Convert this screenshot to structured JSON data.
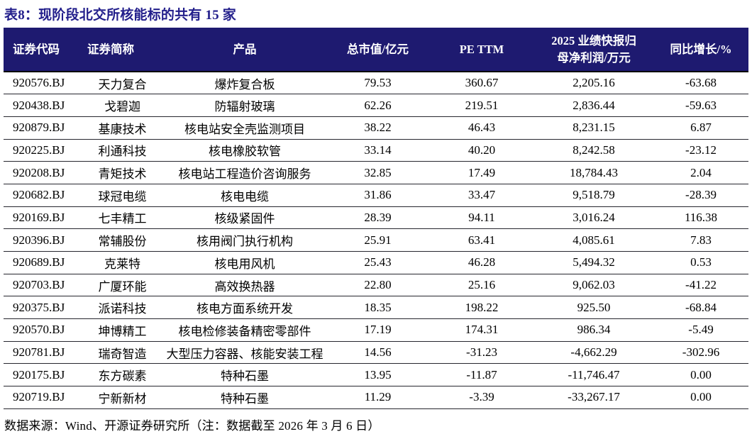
{
  "title": "表8：现阶段北交所核能标的共有 15 家",
  "table": {
    "columns": [
      {
        "label": "证券代码"
      },
      {
        "label": "证券简称"
      },
      {
        "label": "产品"
      },
      {
        "label": "总市值/亿元"
      },
      {
        "label": "PE TTM"
      },
      {
        "label": "2025 业绩快报归",
        "label2": "母净利润/万元"
      },
      {
        "label": "同比增长/%"
      }
    ],
    "rows": [
      [
        "920576.BJ",
        "天力复合",
        "爆炸复合板",
        "79.53",
        "360.67",
        "2,205.16",
        "-63.68"
      ],
      [
        "920438.BJ",
        "戈碧迦",
        "防辐射玻璃",
        "62.26",
        "219.51",
        "2,836.44",
        "-59.63"
      ],
      [
        "920879.BJ",
        "基康技术",
        "核电站安全壳监测项目",
        "38.22",
        "46.43",
        "8,231.15",
        "6.87"
      ],
      [
        "920225.BJ",
        "利通科技",
        "核电橡胶软管",
        "33.14",
        "40.20",
        "8,242.58",
        "-23.12"
      ],
      [
        "920208.BJ",
        "青矩技术",
        "核电站工程造价咨询服务",
        "32.85",
        "17.49",
        "18,784.43",
        "2.04"
      ],
      [
        "920682.BJ",
        "球冠电缆",
        "核电电缆",
        "31.86",
        "33.47",
        "9,518.79",
        "-28.39"
      ],
      [
        "920169.BJ",
        "七丰精工",
        "核级紧固件",
        "28.39",
        "94.11",
        "3,016.24",
        "116.38"
      ],
      [
        "920396.BJ",
        "常辅股份",
        "核用阀门执行机构",
        "25.91",
        "63.41",
        "4,085.61",
        "7.83"
      ],
      [
        "920689.BJ",
        "克莱特",
        "核电用风机",
        "25.43",
        "46.28",
        "5,494.32",
        "0.53"
      ],
      [
        "920703.BJ",
        "广厦环能",
        "高效换热器",
        "22.80",
        "25.16",
        "9,062.03",
        "-41.22"
      ],
      [
        "920375.BJ",
        "派诺科技",
        "核电方面系统开发",
        "18.35",
        "198.22",
        "925.50",
        "-68.84"
      ],
      [
        "920570.BJ",
        "坤博精工",
        "核电检修装备精密零部件",
        "17.19",
        "174.31",
        "986.34",
        "-5.49"
      ],
      [
        "920781.BJ",
        "瑞奇智造",
        "大型压力容器、核能安装工程",
        "14.56",
        "-31.23",
        "-4,662.29",
        "-302.96"
      ],
      [
        "920175.BJ",
        "东方碳素",
        "特种石墨",
        "13.95",
        "-11.87",
        "-11,746.47",
        "0.00"
      ],
      [
        "920719.BJ",
        "宁新新材",
        "特种石墨",
        "11.29",
        "-3.39",
        "-33,267.17",
        "0.00"
      ]
    ]
  },
  "footer": {
    "source": "数据来源：Wind、开源证券研究所（注：数据截至 2026 年 3 月 6 日）"
  },
  "colors": {
    "header_bg": "#1E1A70",
    "title_text": "#221E8B",
    "header_text": "#FFFFFF",
    "body_text": "#000000",
    "row_border": "#26262E"
  }
}
